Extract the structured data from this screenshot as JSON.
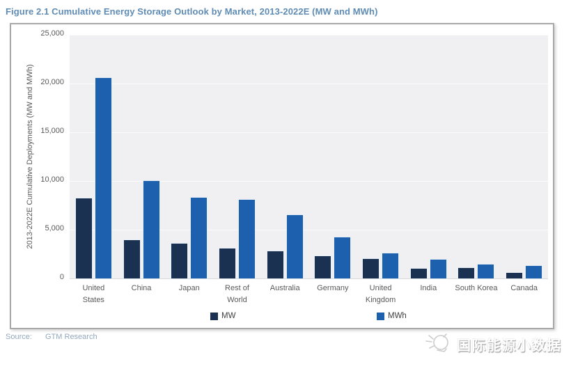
{
  "figure": {
    "title": "Figure 2.1  Cumulative Energy Storage Outlook by Market, 2013-2022E (MW and MWh)"
  },
  "source": {
    "label": "Source:",
    "value": "GTM Research"
  },
  "watermark": {
    "text": "国际能源小数据",
    "icon": "lightbulb-sketch-icon"
  },
  "colors": {
    "title_blue": "#5f8cb4",
    "source_blue": "#92a9bf",
    "axis_text": "#595959",
    "plot_background": "#f0f0f2",
    "gridline": "#fbfbfb",
    "frame_border": "#a8a8a8",
    "mw_bar": "#1b3152",
    "mwh_bar": "#1d60ae"
  },
  "chart_data": {
    "type": "bar",
    "title": "Figure 2.1  Cumulative Energy Storage Outlook by Market, 2013-2022E (MW and MWh)",
    "xlabel": "",
    "ylabel": "2013-2022E Cumulative Deployments (MW and MWh)",
    "ylim": [
      0,
      25000
    ],
    "ytick_interval": 5000,
    "ytick_labels": [
      "25,000",
      "20,000",
      "15,000",
      "10,000",
      "5,000",
      "0"
    ],
    "grid": true,
    "legend_position": "bottom",
    "categories": [
      "United States",
      "China",
      "Japan",
      "Rest of World",
      "Australia",
      "Germany",
      "United Kingdom",
      "India",
      "South Korea",
      "Canada"
    ],
    "series": [
      {
        "name": "MW",
        "color": "#1b3152",
        "values": [
          8200,
          3900,
          3600,
          3100,
          2800,
          2300,
          2000,
          1000,
          1100,
          550
        ]
      },
      {
        "name": "MWh",
        "color": "#1d60ae",
        "values": [
          20600,
          10000,
          8300,
          8100,
          6500,
          4200,
          2600,
          1950,
          1450,
          1300
        ]
      }
    ]
  }
}
